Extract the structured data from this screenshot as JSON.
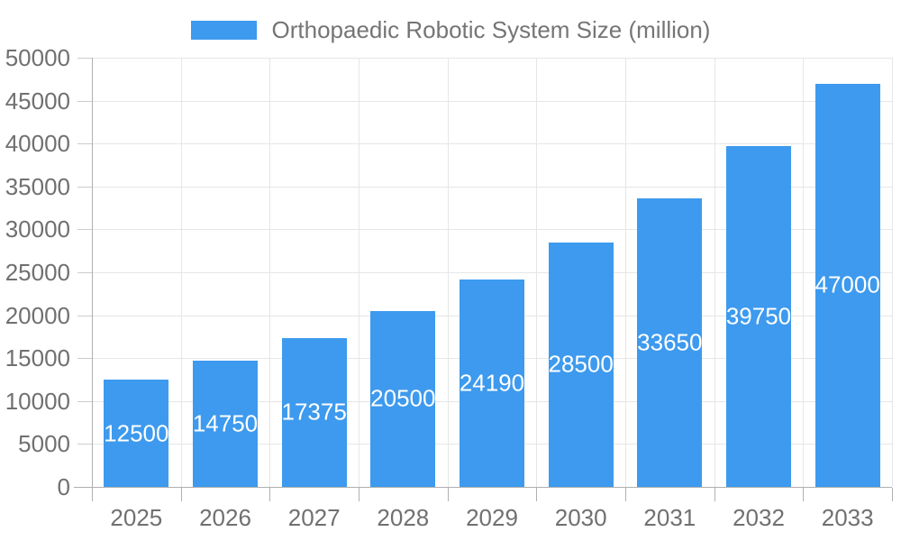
{
  "legend": {
    "label": "Orthopaedic Robotic System Size (million)",
    "swatch_color": "#3d9aee"
  },
  "chart_data": {
    "type": "bar",
    "title": "Orthopaedic Robotic System Size (million)",
    "series_name": "Orthopaedic Robotic System Size (million)",
    "categories": [
      "2025",
      "2026",
      "2027",
      "2028",
      "2029",
      "2030",
      "2031",
      "2032",
      "2033"
    ],
    "values": [
      12500,
      14750,
      17375,
      20500,
      24190,
      28500,
      33650,
      39750,
      47000
    ],
    "xlabel": "",
    "ylabel": "",
    "ylim": [
      0,
      50000
    ],
    "ytick_step": 5000,
    "yticks": [
      0,
      5000,
      10000,
      15000,
      20000,
      25000,
      30000,
      35000,
      40000,
      45000,
      50000
    ],
    "grid": true,
    "legend_position": "top",
    "bar_color": "#3d9aee",
    "value_label_color": "#ffffff"
  },
  "colors": {
    "gridline": "#e6e6e6",
    "axis_line": "#b0b0b0",
    "tick": "#cccccc",
    "axis_text": "#707070",
    "legend_text": "#757575",
    "background": "#ffffff"
  }
}
